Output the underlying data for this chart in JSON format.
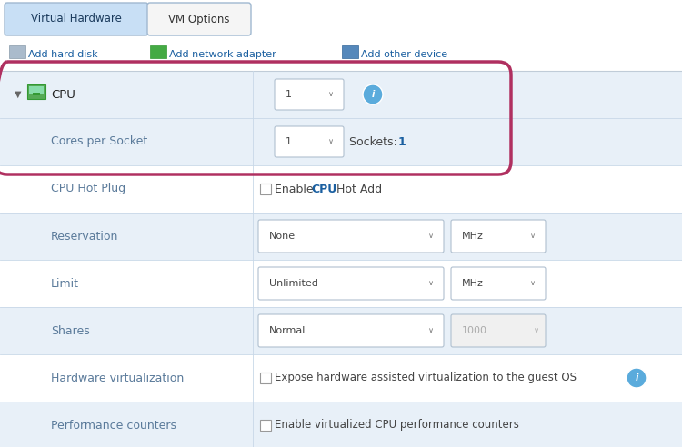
{
  "bg_color": "#ffffff",
  "tab_active_text": "Virtual Hardware",
  "tab_inactive_text": "VM Options",
  "tab_active_bg": "#c8dff5",
  "tab_inactive_bg": "#f5f5f5",
  "tab_border": "#a0b8d0",
  "toolbar_items": [
    "Add hard disk",
    "Add network adapter",
    "Add other device"
  ],
  "highlight_bg": "#e8f0f8",
  "white_bg": "#ffffff",
  "row_label_color": "#5a7a9a",
  "cpu_label_color": "#222222",
  "text_color": "#444444",
  "blue_bold_color": "#1a5fa0",
  "blue_info_color": "#5aabdc",
  "dropdown_border": "#b0c0d0",
  "dropdown_bg": "#ffffff",
  "grey_dropdown_bg": "#f0f0f0",
  "grey_text": "#aaaaaa",
  "ellipse_color": "#b03060",
  "figure_width": 7.5,
  "figure_height": 4.92,
  "dpi": 100
}
